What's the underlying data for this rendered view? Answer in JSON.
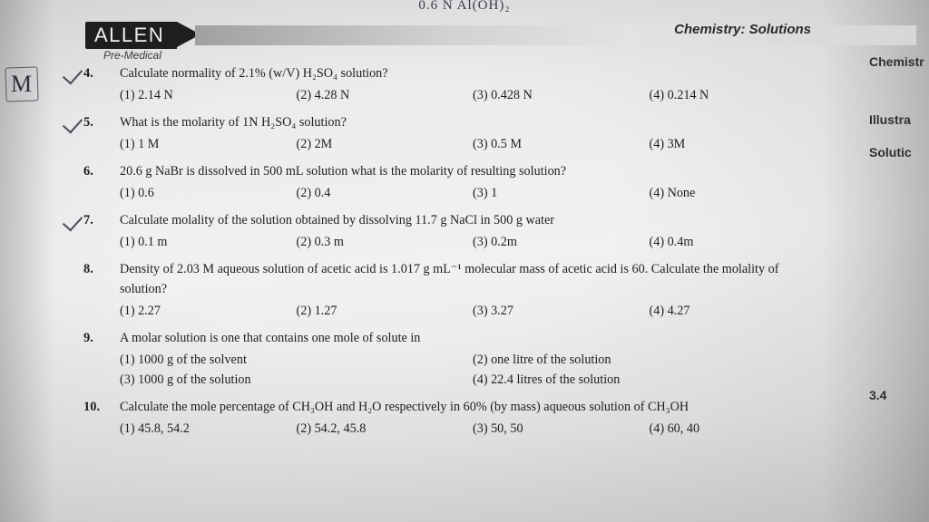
{
  "handwriting_top": "0.6 N  Al(OH)₂",
  "margin_mark": "M",
  "brand": "ALLEN",
  "sub_brand": "Pre-Medical",
  "header_right": "Chemistry: Solutions",
  "right_snips": {
    "a": "Chemistr",
    "b": "Illustra",
    "c": "Solutic",
    "d": "3.4"
  },
  "q4": {
    "num": "4.",
    "stem": "Calculate normality of 2.1% (w/V) H₂SO₄ solution?",
    "o1": "(1) 2.14 N",
    "o2": "(2) 4.28 N",
    "o3": "(3) 0.428 N",
    "o4": "(4) 0.214 N"
  },
  "q5": {
    "num": "5.",
    "stem": "What is the molarity of 1N H₂SO₄ solution?",
    "o1": "(1) 1 M",
    "o2": "(2) 2M",
    "o3": "(3) 0.5 M",
    "o4": "(4) 3M"
  },
  "q6": {
    "num": "6.",
    "stem": "20.6 g NaBr is dissolved in 500 mL solution what is the molarity of resulting solution?",
    "o1": "(1) 0.6",
    "o2": "(2) 0.4",
    "o3": "(3) 1",
    "o4": "(4) None"
  },
  "q7": {
    "num": "7.",
    "stem": "Calculate molality of the solution obtained by dissolving 11.7 g NaCl in 500 g water",
    "o1": "(1) 0.1 m",
    "o2": "(2) 0.3 m",
    "o3": "(3) 0.2m",
    "o4": "(4) 0.4m"
  },
  "q8": {
    "num": "8.",
    "stem": "Density of 2.03 M aqueous solution of acetic acid is 1.017 g mL⁻¹ molecular mass of acetic acid is 60. Calculate the molality of solution?",
    "o1": "(1) 2.27",
    "o2": "(2) 1.27",
    "o3": "(3) 3.27",
    "o4": "(4) 4.27"
  },
  "q9": {
    "num": "9.",
    "stem": "A molar solution is one that contains one mole of solute in",
    "o1": "(1) 1000 g of the solvent",
    "o2": "(2) one litre of the solution",
    "o3": "(3) 1000 g of the solution",
    "o4": "(4) 22.4 litres of the solution"
  },
  "q10": {
    "num": "10.",
    "stem": "Calculate the mole percentage of CH₃OH and H₂O respectively in 60% (by mass) aqueous solution of CH₃OH",
    "o1": "(1) 45.8, 54.2",
    "o2": "(2) 54.2, 45.8",
    "o3": "(3) 50, 50",
    "o4": "(4) 60, 40"
  },
  "colors": {
    "text": "#1f1f1f",
    "brand_bg": "#1e1e1e",
    "brand_fg": "#efefef",
    "bar_grad_from": "#a0a0a2",
    "bar_grad_to": "#d6d6d8",
    "page_bg_light": "#f1f1f2",
    "page_bg_dark": "#d9d9db"
  },
  "fonts": {
    "body": "Georgia / Times-like serif ~14pt",
    "brand": "Impact / Arial Black ~22pt",
    "header_right": "italic bold sans ~15pt",
    "handwriting": "cursive ~15pt"
  }
}
